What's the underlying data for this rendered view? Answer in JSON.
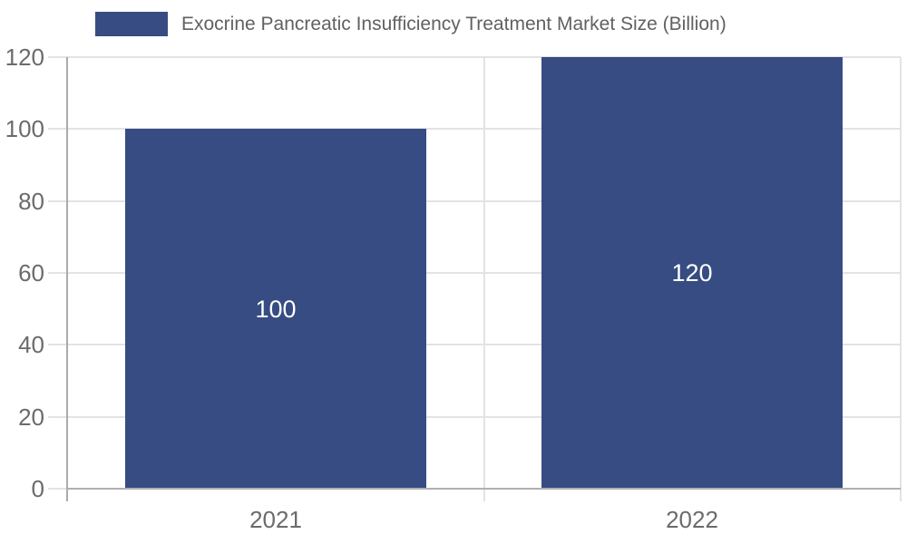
{
  "legend": {
    "label": "Exocrine Pancreatic Insufficiency Treatment Market Size (Billion)"
  },
  "chart_data": {
    "type": "bar",
    "title": "",
    "xlabel": "",
    "ylabel": "",
    "categories": [
      "2021",
      "2022"
    ],
    "series": [
      {
        "name": "Exocrine Pancreatic Insufficiency Treatment Market Size (Billion)",
        "values": [
          100,
          120
        ]
      }
    ],
    "bar_value_labels": [
      "100",
      "120"
    ],
    "yticks": [
      0,
      20,
      40,
      60,
      80,
      100,
      120
    ],
    "ylim": [
      0,
      120
    ],
    "grid": true,
    "legend_position": "top",
    "colors": {
      "bar": "#374C82",
      "grid_line": "#E3E3E3",
      "axis_line": "#ABABAB",
      "x_axis_line": "#B0B0B0",
      "tick_label": "#6B6B6B",
      "legend_text": "#616161",
      "bar_label": "#FFFFFF",
      "background": "#FFFFFF"
    }
  }
}
